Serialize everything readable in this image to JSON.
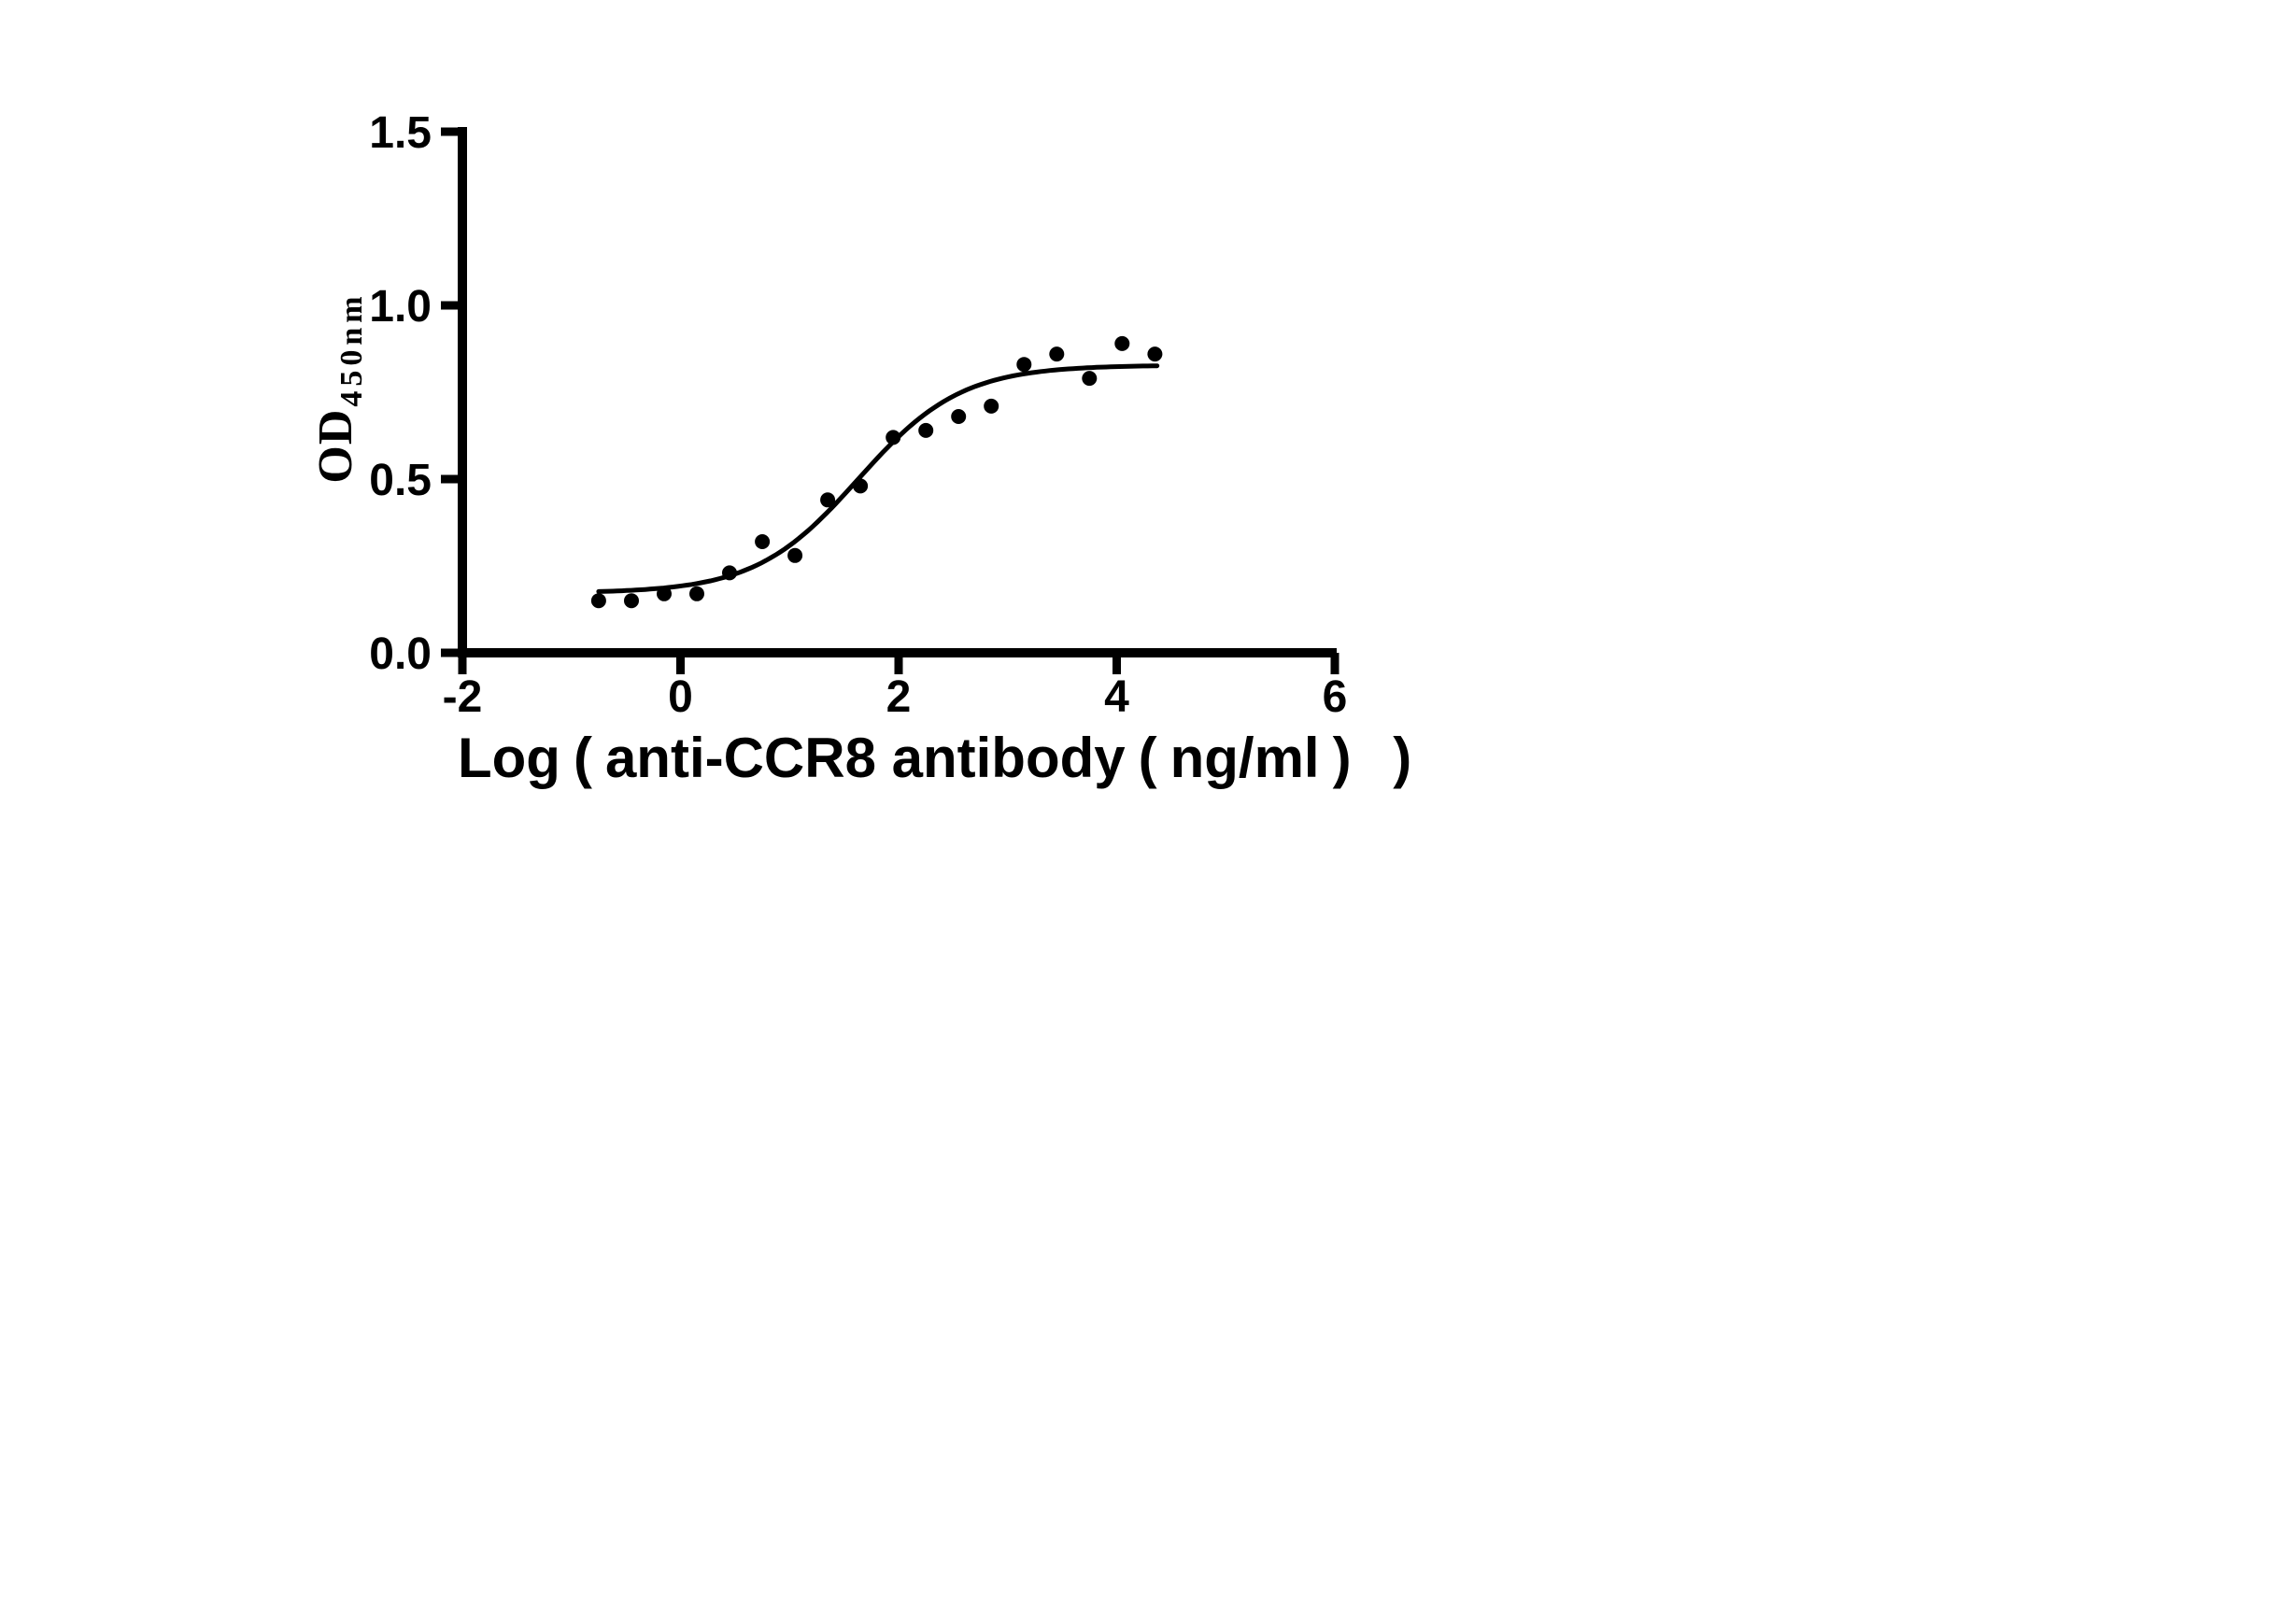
{
  "page": {
    "background": "#ffffff",
    "ink_color": "#000000"
  },
  "chart_data": {
    "type": "scatter",
    "title": "",
    "x_title": "Log（anti-CCR8 antibody（ng/ml） ）",
    "y_title_main": "OD",
    "y_title_sub": "450nm",
    "xlabel": "Log（anti-CCR8 antibody（ng/ml） ）",
    "ylabel": "OD450nm",
    "xlim": [
      -2,
      6
    ],
    "ylim": [
      0,
      1.5
    ],
    "x_tick_values": [
      -2,
      0,
      2,
      4,
      6
    ],
    "x_tick_labels": [
      "-2",
      "0",
      "2",
      "4",
      "6"
    ],
    "y_tick_values": [
      0,
      0.5,
      1.0,
      1.5
    ],
    "y_tick_labels": [
      "0.0",
      "0.5",
      "1.0",
      "1.5"
    ],
    "grid": false,
    "legend": null,
    "marker_color": "#000000",
    "curve_color": "#000000",
    "series": [
      {
        "name": "measured-points",
        "type": "scatter",
        "x": [
          -0.75,
          -0.45,
          -0.15,
          0.15,
          0.45,
          0.75,
          1.05,
          1.35,
          1.65,
          1.95,
          2.25,
          2.55,
          2.85,
          3.15,
          3.45,
          3.75,
          4.05,
          4.35
        ],
        "y": [
          0.15,
          0.15,
          0.17,
          0.17,
          0.23,
          0.32,
          0.28,
          0.44,
          0.48,
          0.62,
          0.64,
          0.68,
          0.71,
          0.83,
          0.86,
          0.79,
          0.89,
          0.86
        ]
      },
      {
        "name": "sigmoid-fit-curve",
        "type": "line",
        "model": "four-parameter-logistic",
        "bottom": 0.172,
        "top": 0.828,
        "logEC50": 1.63,
        "hill": 0.92,
        "x_range": [
          -0.75,
          4.37
        ]
      }
    ]
  }
}
